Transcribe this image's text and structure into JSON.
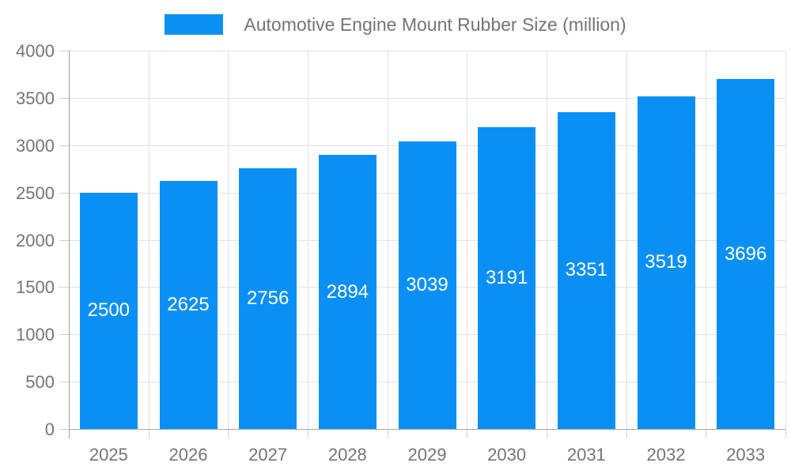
{
  "legend": {
    "label": "Automotive Engine Mount Rubber Size (million)"
  },
  "chart_data": {
    "type": "bar",
    "title": "Automotive Engine Mount Rubber Size (million)",
    "categories": [
      "2025",
      "2026",
      "2027",
      "2028",
      "2029",
      "2030",
      "2031",
      "2032",
      "2033"
    ],
    "values": [
      2500,
      2625,
      2756,
      2894,
      3039,
      3191,
      3351,
      3519,
      3696
    ],
    "series_name": "Automotive Engine Mount Rubber Size (million)",
    "xlabel": "",
    "ylabel": "",
    "ylim": [
      0,
      4000
    ],
    "ytick_step": 500,
    "grid": "on",
    "legend_position": "top-center",
    "bar_labels_inside": true,
    "colors": {
      "bar": "#0a90f4",
      "bar_label": "#ffffff",
      "grid_line": "#e2e2e2",
      "axis_line": "#9e9e9e",
      "tick_mark": "#cfcfcf",
      "tick_label": "#757575",
      "legend_text": "#757575",
      "background": "#ffffff"
    }
  }
}
